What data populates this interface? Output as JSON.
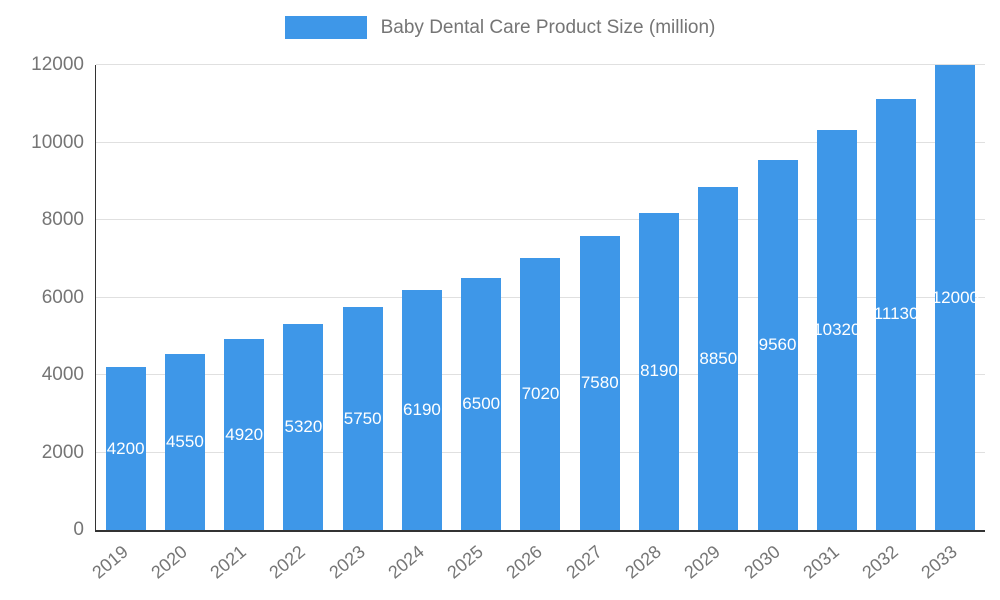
{
  "legend": {
    "label": "Baby Dental Care Product Size (million)"
  },
  "chart_data": {
    "type": "bar",
    "title": "Baby Dental Care Product Size (million)",
    "categories": [
      "2019",
      "2020",
      "2021",
      "2022",
      "2023",
      "2024",
      "2025",
      "2026",
      "2027",
      "2028",
      "2029",
      "2030",
      "2031",
      "2032",
      "2033"
    ],
    "values": [
      4200,
      4550,
      4920,
      5320,
      5750,
      6190,
      6500,
      7020,
      7580,
      8190,
      8850,
      9560,
      10320,
      11130,
      12000
    ],
    "xlabel": "",
    "ylabel": "",
    "ylim": [
      0,
      12000
    ],
    "ytick_step": 2000,
    "yticks": [
      0,
      2000,
      4000,
      6000,
      8000,
      10000,
      12000
    ],
    "grid": true,
    "legend_position": "top",
    "bar_value_labels_visible": true,
    "colors": {
      "bar": "#3E97E8",
      "bar_label_text": "#ffffff",
      "grid": "#e0e0e0",
      "axis": "#333333",
      "axis_text": "#757575"
    }
  }
}
